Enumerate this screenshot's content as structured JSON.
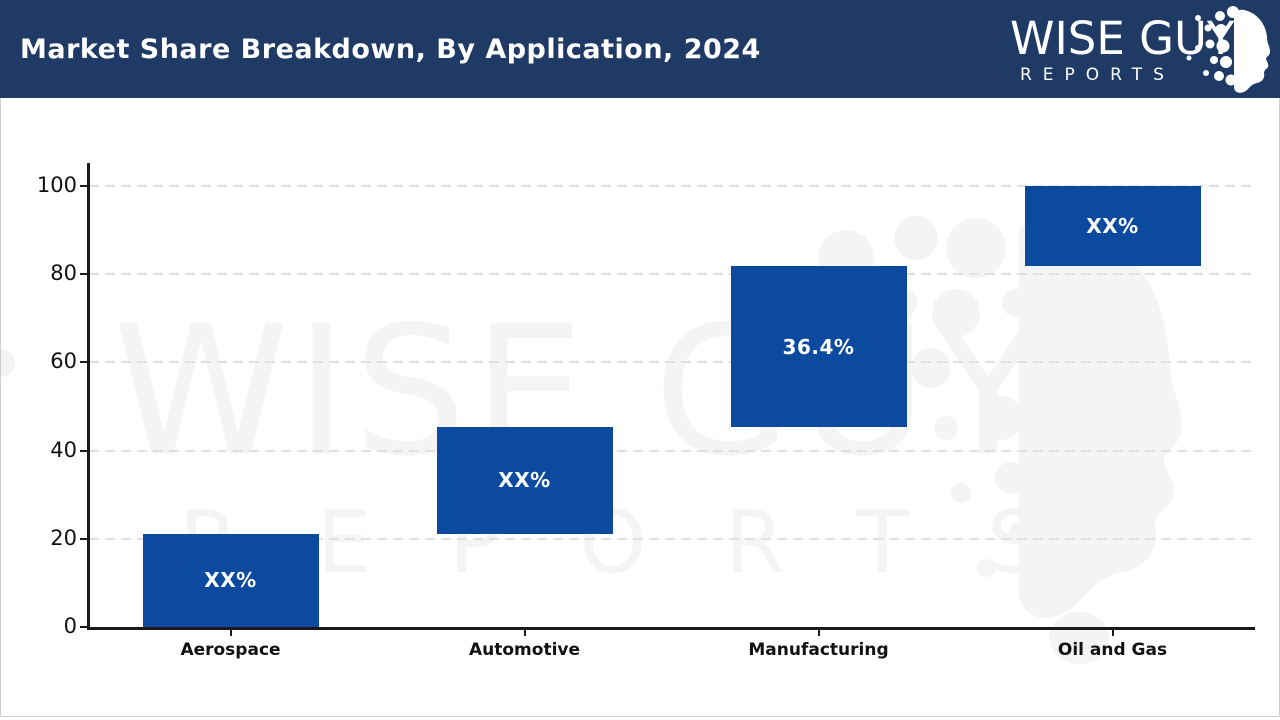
{
  "header": {
    "title": "Market Share Breakdown, By Application, 2024",
    "bg_color": "#203a66",
    "logo": {
      "line1": "WISE GUY",
      "line2": "REPORTS"
    }
  },
  "watermark": {
    "line1": "WISE GUY",
    "line2": "REPORTS"
  },
  "chart_data": {
    "type": "bar",
    "subtype": "waterfall",
    "title": "Market Share Breakdown, By Application, 2024",
    "categories": [
      "Aerospace",
      "Automotive",
      "Manufacturing",
      "Oil and Gas"
    ],
    "segments": [
      {
        "category": "Aerospace",
        "start": 0,
        "end": 21.2,
        "label": "XX%"
      },
      {
        "category": "Automotive",
        "start": 21.2,
        "end": 45.4,
        "label": "XX%"
      },
      {
        "category": "Manufacturing",
        "start": 45.4,
        "end": 81.8,
        "label": "36.4%"
      },
      {
        "category": "Oil and Gas",
        "start": 81.8,
        "end": 100,
        "label": "XX%"
      }
    ],
    "y_ticks": [
      0,
      20,
      40,
      60,
      80,
      100
    ],
    "ylim": [
      0,
      105
    ],
    "xlabel": "",
    "ylabel": "",
    "bar_color": "#0b4a9e",
    "grid": "horizontal-dashed",
    "gridline_color": "#e0e0e0",
    "legend": "none"
  }
}
